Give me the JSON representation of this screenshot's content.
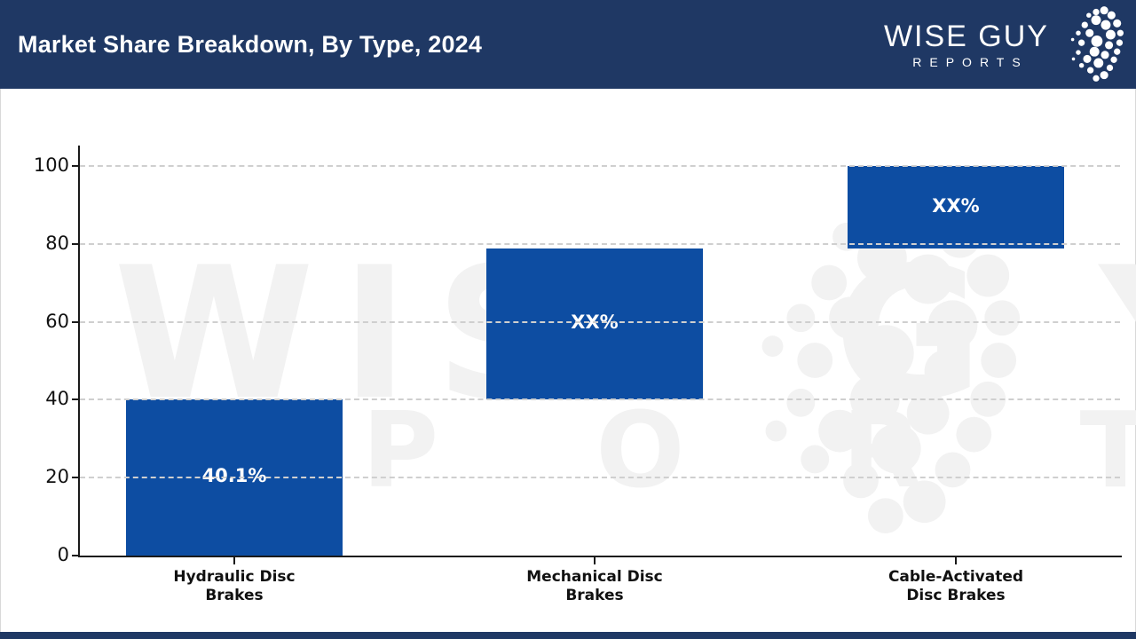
{
  "header": {
    "title": "Market Share Breakdown, By Type, 2024",
    "background_color": "#1f3864",
    "logo": {
      "line1": "WISE GUY",
      "line2": "REPORTS"
    }
  },
  "watermark": {
    "line1": "WISE G Y",
    "line2": "E P O R T S"
  },
  "chart_data": {
    "type": "bar",
    "subtype": "waterfall-stacked",
    "title": "Market Share Breakdown, By Type, 2024",
    "categories": [
      [
        "Hydraulic Disc",
        "Brakes"
      ],
      [
        "Mechanical Disc",
        "Brakes"
      ],
      [
        "Cable-Activated",
        "Disc Brakes"
      ]
    ],
    "segments": [
      {
        "start": 0,
        "end": 40.1,
        "label": "40.1%"
      },
      {
        "start": 40.1,
        "end": 78.8,
        "label": "XX%"
      },
      {
        "start": 78.8,
        "end": 100,
        "label": "XX%"
      }
    ],
    "values": [
      40.1,
      38.7,
      21.2
    ],
    "yticks": [
      0,
      20,
      40,
      60,
      80,
      100
    ],
    "ylim": [
      0,
      100
    ],
    "xlabel": "",
    "ylabel": "",
    "grid": "horizontal-dashed",
    "grid_over_bars": true,
    "bar_color": "#0d4da2",
    "bar_label_color": "#ffffff",
    "axis_color": "#1a1a1a",
    "gridline_color": "#cfcfcf"
  }
}
